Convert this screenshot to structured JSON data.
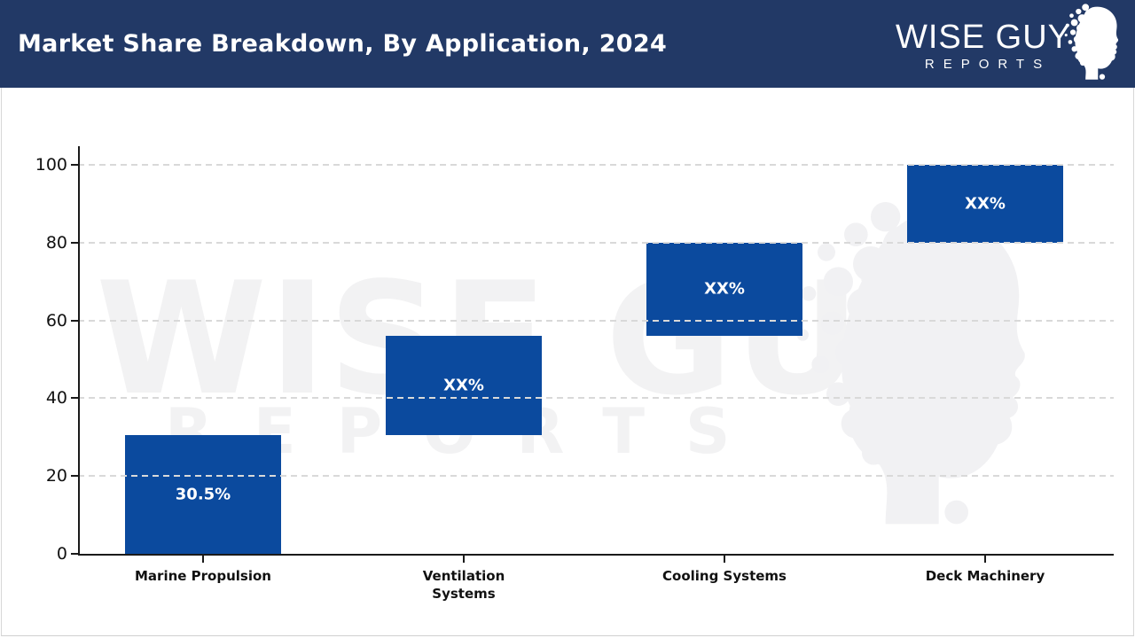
{
  "header": {
    "title": "Market Share Breakdown, By Application, 2024",
    "logo": {
      "brand_top": "WISE GUY",
      "brand_bottom": "REPORTS"
    }
  },
  "watermark": {
    "line1": "WISE GUY",
    "line2": "REPORTS"
  },
  "colors": {
    "header_bg": "#223966",
    "bar": "#0b4a9e",
    "bar_label": "#ffffff",
    "grid": "#d9d9d9",
    "axis": "#1a1a1a",
    "watermark": "#f2f2f3",
    "frame_border": "#d7d7d7"
  },
  "chart_data": {
    "type": "bar",
    "subtype": "stacked-waterfall",
    "title": "Market Share Breakdown, By Application, 2024",
    "xlabel": "",
    "ylabel": "",
    "ylim": [
      0,
      100
    ],
    "yticks": [
      0,
      20,
      40,
      60,
      80,
      100
    ],
    "grid": "dashed-horizontal",
    "legend": "none",
    "bar_color": "#0b4a9e",
    "categories": [
      "Marine Propulsion",
      "Ventilation Systems",
      "Cooling Systems",
      "Deck Machinery"
    ],
    "category_lines": [
      [
        "Marine Propulsion"
      ],
      [
        "Ventilation",
        "Systems"
      ],
      [
        "Cooling Systems"
      ],
      [
        "Deck Machinery"
      ]
    ],
    "segments": [
      {
        "category": "Marine Propulsion",
        "start": 0,
        "end": 30.5,
        "value": 30.5,
        "label": "30.5%"
      },
      {
        "category": "Ventilation Systems",
        "start": 30.5,
        "end": 56,
        "value": 25.5,
        "label": "XX%"
      },
      {
        "category": "Cooling Systems",
        "start": 56,
        "end": 80,
        "value": 24,
        "label": "XX%"
      },
      {
        "category": "Deck Machinery",
        "start": 80,
        "end": 100,
        "value": 20,
        "label": "XX%"
      }
    ]
  }
}
